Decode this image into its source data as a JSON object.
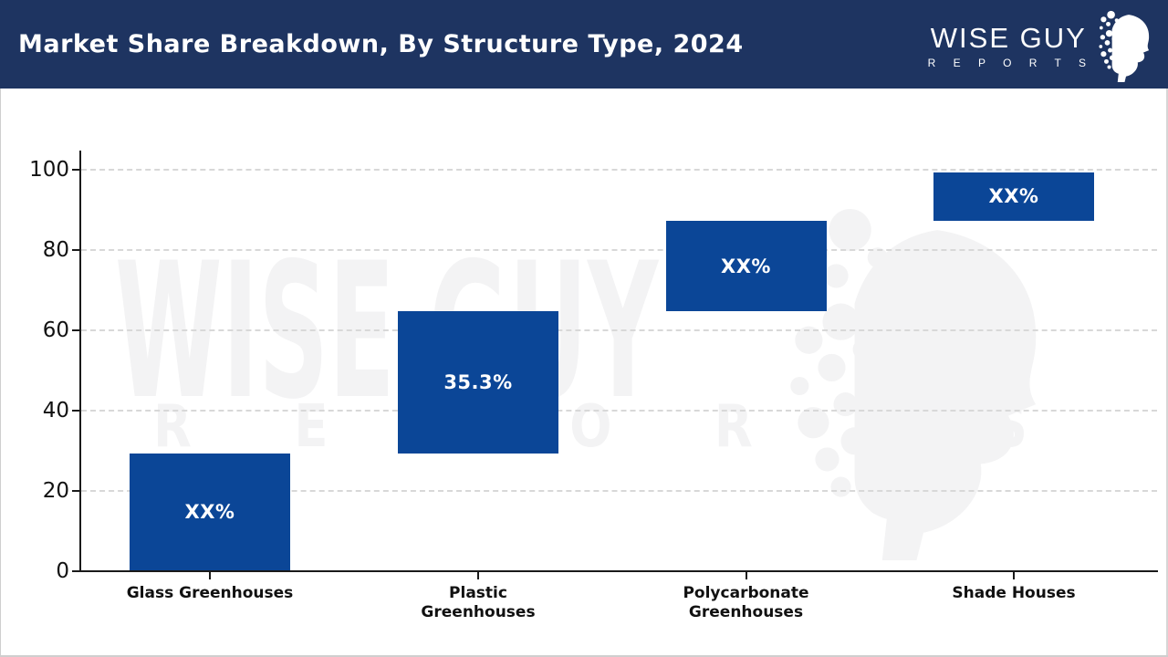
{
  "header": {
    "title": "Market Share Breakdown, By Structure Type, 2024",
    "logo": {
      "line1": "WISE GUY",
      "line2": "R E P O R T S"
    }
  },
  "watermark": {
    "line1": "WISE GUY",
    "line2": "R E P O R T S"
  },
  "colors": {
    "header_bg": "#1e3461",
    "bar": "#0b4697",
    "bar_label": "#ffffff",
    "axis": "#1a1a1a",
    "grid": "#d8d8d8",
    "watermark": "#f3f3f4",
    "logo_text": "#ffffff"
  },
  "chart_data": {
    "type": "bar",
    "subtype": "waterfall",
    "title": "Market Share Breakdown, By Structure Type, 2024",
    "xlabel": "",
    "ylabel": "",
    "ylim": [
      0,
      104
    ],
    "yticks": [
      0,
      20,
      40,
      60,
      80,
      100
    ],
    "grid": "dashed-horizontal",
    "legend": "none",
    "categories": [
      "Glass Greenhouses",
      "Plastic Greenhouses",
      "Polycarbonate Greenhouses",
      "Shade Houses"
    ],
    "tick_label_lines": [
      [
        "Glass Greenhouses"
      ],
      [
        "Plastic",
        "Greenhouses"
      ],
      [
        "Polycarbonate",
        "Greenhouses"
      ],
      [
        "Shade Houses"
      ]
    ],
    "segments": [
      {
        "category": "Glass Greenhouses",
        "start": 0,
        "end": 29.4,
        "value": 29.4,
        "label": "XX%"
      },
      {
        "category": "Plastic Greenhouses",
        "start": 29.4,
        "end": 64.7,
        "value": 35.3,
        "label": "35.3%"
      },
      {
        "category": "Polycarbonate Greenhouses",
        "start": 64.7,
        "end": 87.2,
        "value": 22.5,
        "label": "XX%"
      },
      {
        "category": "Shade Houses",
        "start": 87.2,
        "end": 99.4,
        "value": 12.2,
        "label": "XX%"
      }
    ]
  }
}
